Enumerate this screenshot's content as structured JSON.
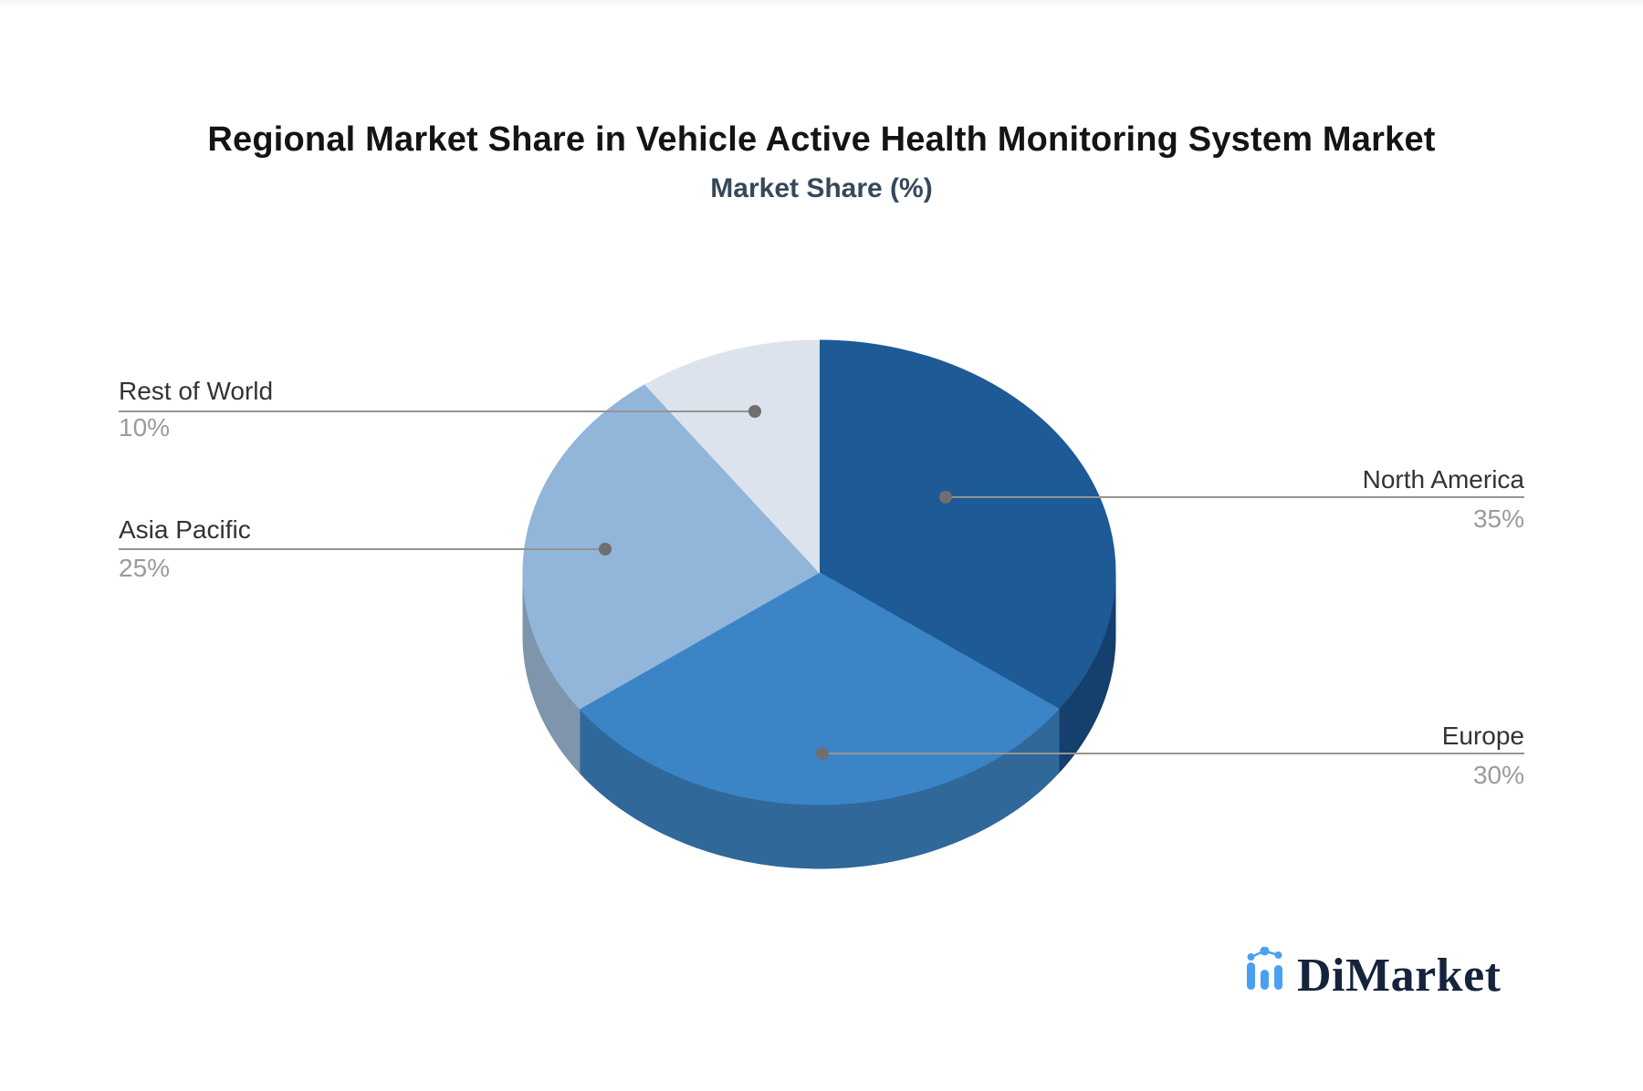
{
  "page": {
    "background": "#ffffff",
    "top_strip_color": "#f7f8f9"
  },
  "chart_data": {
    "type": "pie",
    "style": "3d",
    "title": "Regional Market Share in Vehicle Active Health Monitoring System Market",
    "subtitle": "Market Share (%)",
    "unit": "%",
    "direction": "clockwise",
    "start_angle_deg": 0,
    "legend_position": "none",
    "categories": [
      "North America",
      "Europe",
      "Asia Pacific",
      "Rest of World"
    ],
    "values": [
      35,
      30,
      25,
      10
    ],
    "slices": [
      {
        "label": "North America",
        "value": 35,
        "value_label": "35%",
        "color": "#1d5a96",
        "side_color": "#153f6c",
        "label_side": "right"
      },
      {
        "label": "Europe",
        "value": 30,
        "value_label": "30%",
        "color": "#3b85c7",
        "side_color": "#30689a",
        "label_side": "right"
      },
      {
        "label": "Asia Pacific",
        "value": 25,
        "value_label": "25%",
        "color": "#92b5da",
        "side_color": "#7e95ac",
        "label_side": "left"
      },
      {
        "label": "Rest of World",
        "value": 10,
        "value_label": "10%",
        "color": "#dde3ec",
        "side_color": "#b9c5d5",
        "label_side": "left"
      }
    ],
    "title_color": "#141414",
    "subtitle_color": "#36485a",
    "label_text_color": "#333333",
    "value_text_color": "#9b9b9b",
    "leader_line_color": "#949494",
    "leader_dot_color": "#6f6f6f"
  },
  "branding": {
    "logo_text": "DiMarket",
    "logo_icon": "bar-line-chart-icon",
    "icon_color": "#4aa0f0",
    "text_color": "#16233c"
  }
}
